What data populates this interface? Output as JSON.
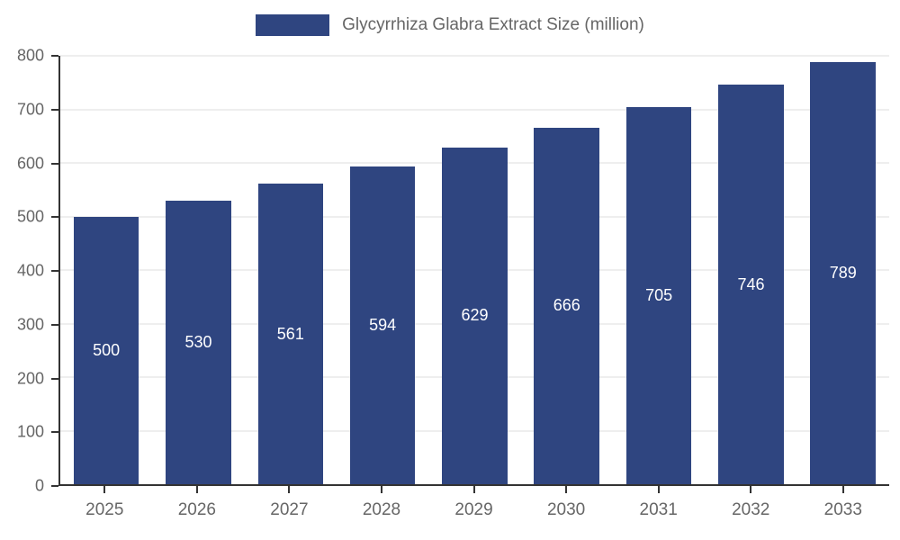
{
  "chart_data": {
    "type": "bar",
    "title": "Glycyrrhiza Glabra Extract Size (million)",
    "categories": [
      "2025",
      "2026",
      "2027",
      "2028",
      "2029",
      "2030",
      "2031",
      "2032",
      "2033"
    ],
    "values": [
      500,
      530,
      561,
      594,
      629,
      666,
      705,
      746,
      789
    ],
    "xlabel": "",
    "ylabel": "",
    "ylim": [
      0,
      800
    ],
    "ytick_step": 100,
    "grid": "horizontal",
    "legend_position": "top",
    "colors": {
      "bar": "#2F4580",
      "bar_label": "#FFFFFF",
      "axis_text": "#666666",
      "spine": "#333333",
      "grid": "#DCDCDC",
      "background": "#FFFFFF"
    }
  }
}
